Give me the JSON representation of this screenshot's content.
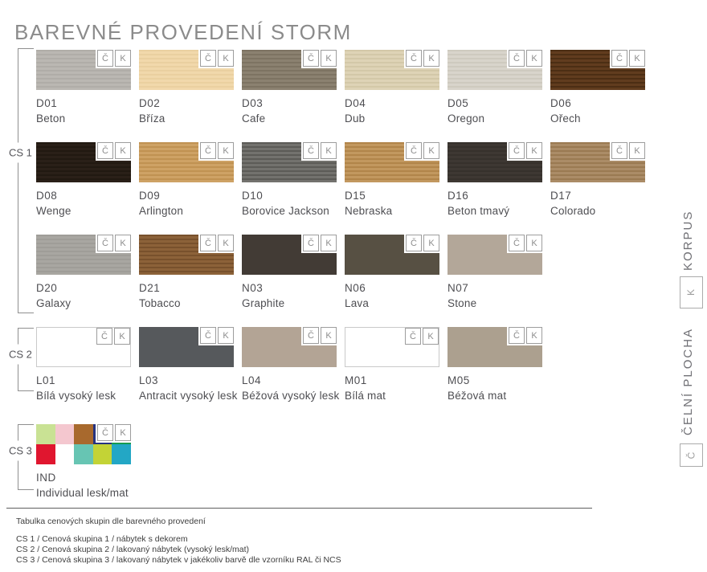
{
  "title": "BAREVNÉ PROVEDENÍ STORM",
  "badge_front": "Č",
  "badge_korpus": "K",
  "groups": [
    {
      "label": "CS 1",
      "rows": [
        [
          {
            "code": "D01",
            "name": "Beton",
            "base": "#bab7b2",
            "grain": "#b0ada8"
          },
          {
            "code": "D02",
            "name": "Bříza",
            "base": "#f1d8ab",
            "grain": "#ead0a0"
          },
          {
            "code": "D03",
            "name": "Cafe",
            "base": "#8b8170",
            "grain": "#7d7362"
          },
          {
            "code": "D04",
            "name": "Dub",
            "base": "#ded3b6",
            "grain": "#d3c8a8"
          },
          {
            "code": "D05",
            "name": "Oregon",
            "base": "#d8d4cb",
            "grain": "#cecabf"
          },
          {
            "code": "D06",
            "name": "Ořech",
            "base": "#613c1e",
            "grain": "#4c2e14"
          }
        ],
        [
          {
            "code": "D08",
            "name": "Wenge",
            "base": "#2a2018",
            "grain": "#211911"
          },
          {
            "code": "D09",
            "name": "Arlington",
            "base": "#cea265",
            "grain": "#c09252"
          },
          {
            "code": "D10",
            "name": "Borovice Jackson",
            "base": "#73726e",
            "grain": "#5c5b57"
          },
          {
            "code": "D15",
            "name": "Nebraska",
            "base": "#c2985f",
            "grain": "#b1854a"
          },
          {
            "code": "D16",
            "name": "Beton tmavý",
            "base": "#3e3833",
            "grain": "#36312c"
          },
          {
            "code": "D17",
            "name": "Colorado",
            "base": "#ab8c67",
            "grain": "#9a7a52"
          }
        ],
        [
          {
            "code": "D20",
            "name": "Galaxy",
            "base": "#a8a6a1",
            "grain": "#9f9d98"
          },
          {
            "code": "D21",
            "name": "Tobacco",
            "base": "#8c6239",
            "grain": "#78512c"
          },
          {
            "code": "N03",
            "name": "Graphite",
            "base": "#423b35"
          },
          {
            "code": "N06",
            "name": "Lava",
            "base": "#575043"
          },
          {
            "code": "N07",
            "name": "Stone",
            "base": "#b3a799"
          }
        ]
      ]
    },
    {
      "label": "CS 2",
      "rows": [
        [
          {
            "code": "L01",
            "name": "Bílá vysoký lesk",
            "base": "#ffffff",
            "border": "#c9c9c9"
          },
          {
            "code": "L03",
            "name": "Antracit vysoký lesk",
            "base": "#56595c"
          },
          {
            "code": "L04",
            "name": "Béžová vysoký lesk",
            "base": "#b3a495"
          },
          {
            "code": "M01",
            "name": "Bílá mat",
            "base": "#ffffff",
            "border": "#c9c9c9"
          },
          {
            "code": "M05",
            "name": "Béžová mat",
            "base": "#aca08f"
          }
        ]
      ]
    },
    {
      "label": "CS 3",
      "rows": [
        [
          {
            "code": "IND",
            "name": "Individual lesk/mat",
            "colors": [
              [
                "#c9e294",
                "#f4c7cf",
                "#a8692d",
                "#263380",
                "#169a4f"
              ],
              [
                "#e0162f",
                "#ffffff",
                "#67c5b3",
                "#c3d336",
                "#23a7c5"
              ]
            ]
          }
        ]
      ]
    }
  ],
  "side": {
    "korpus_label": "KORPUS",
    "korpus_badge": "K",
    "front_label": "ČELNÍ PLOCHA",
    "front_badge": "Č"
  },
  "footer": {
    "heading": "Tabulka cenových skupin dle barevného provedení",
    "lines": [
      "CS 1 / Cenová skupina 1 / nábytek s dekorem",
      "CS 2 / Cenová skupina 2 / lakovaný nábytek (vysoký lesk/mat)",
      "CS 3 / Cenová skupina 3 / lakovaný nábytek v jakékoliv barvě dle vzorníku RAL či NCS"
    ]
  }
}
